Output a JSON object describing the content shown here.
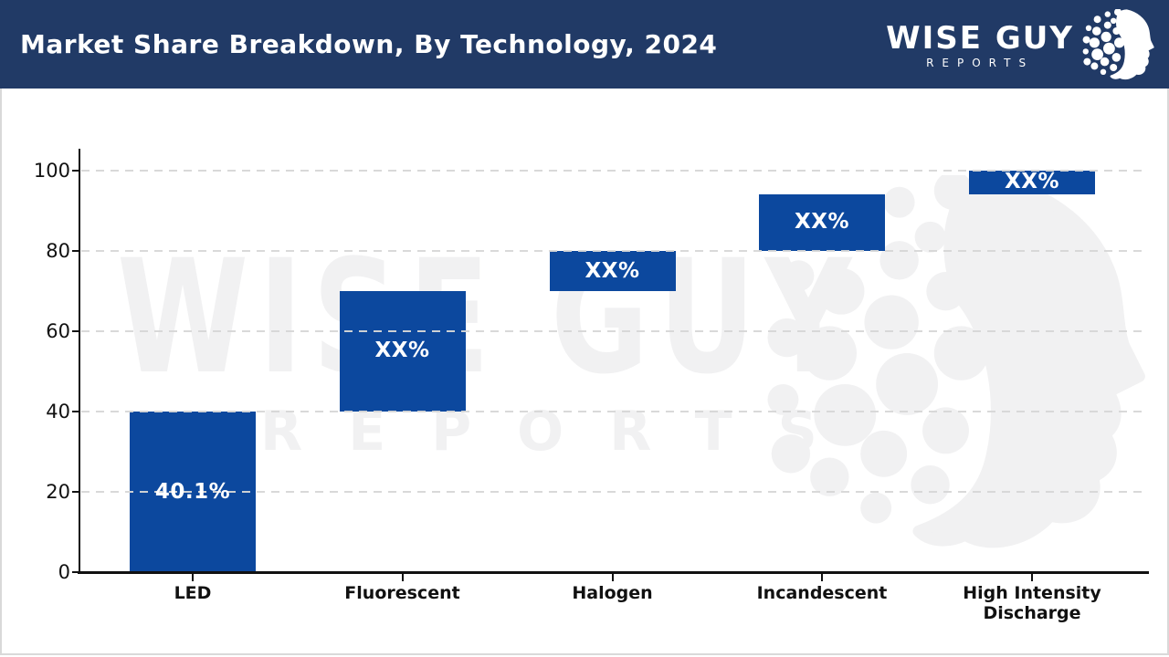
{
  "header": {
    "title": "Market Share Breakdown, By Technology, 2024",
    "logo": {
      "name": "WISE GUY",
      "sub": "REPORTS"
    }
  },
  "watermark": {
    "name": "WISE GUY",
    "sub": "REPORTS"
  },
  "colors": {
    "header_bg": "#213a66",
    "bar_blue": "#0c489e",
    "gridline": "#d9d9d9",
    "axis": "#111111",
    "bar_label_text": "#ffffff",
    "watermark_gray": "#f1f1f2"
  },
  "chart_data": {
    "type": "bar",
    "subtype": "waterfall",
    "title": "Market Share Breakdown, By Technology, 2024",
    "xlabel": "",
    "ylabel": "",
    "categories": [
      "LED",
      "Fluorescent",
      "Halogen",
      "Incandescent",
      "High Intensity Discharge"
    ],
    "segments": [
      {
        "category": "LED",
        "start": 0,
        "end": 40.1,
        "label": "40.1%"
      },
      {
        "category": "Fluorescent",
        "start": 40.1,
        "end": 70.0,
        "label": "XX%"
      },
      {
        "category": "Halogen",
        "start": 70.0,
        "end": 80.1,
        "label": "XX%"
      },
      {
        "category": "Incandescent",
        "start": 80.1,
        "end": 94.1,
        "label": "XX%"
      },
      {
        "category": "High Intensity Discharge",
        "start": 94.1,
        "end": 100.0,
        "label": "XX%"
      }
    ],
    "yticks": [
      0,
      20,
      40,
      60,
      80,
      100
    ],
    "ylim": [
      0,
      105
    ],
    "grid": "dashed-horizontal-over-bars",
    "legend": "none"
  }
}
